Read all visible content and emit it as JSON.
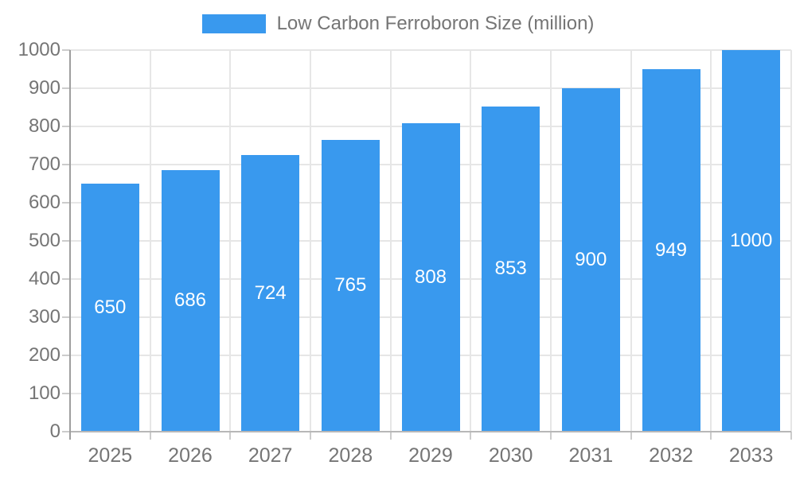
{
  "legend": {
    "label": "Low Carbon Ferroboron Size (million)"
  },
  "chart_data": {
    "type": "bar",
    "title": "",
    "xlabel": "",
    "ylabel": "",
    "categories": [
      "2025",
      "2026",
      "2027",
      "2028",
      "2029",
      "2030",
      "2031",
      "2032",
      "2033"
    ],
    "series": [
      {
        "name": "Low Carbon Ferroboron Size (million)",
        "values": [
          650,
          686,
          724,
          765,
          808,
          853,
          900,
          949,
          1000
        ]
      }
    ],
    "data_labels": [
      "650",
      "686",
      "724",
      "765",
      "808",
      "853",
      "900",
      "949",
      "1000"
    ],
    "ylim": [
      0,
      1000
    ],
    "ytick_step": 100,
    "ytick_labels": [
      "0",
      "100",
      "200",
      "300",
      "400",
      "500",
      "600",
      "700",
      "800",
      "900",
      "1000"
    ],
    "grid": true,
    "legend_position": "top"
  },
  "colors": {
    "bar": "#3999ee",
    "bar_label": "#ffffff",
    "axis_text": "#757575",
    "grid_line": "#e6e6e6",
    "axis_line": "#9e9e9e",
    "background": "#ffffff"
  }
}
